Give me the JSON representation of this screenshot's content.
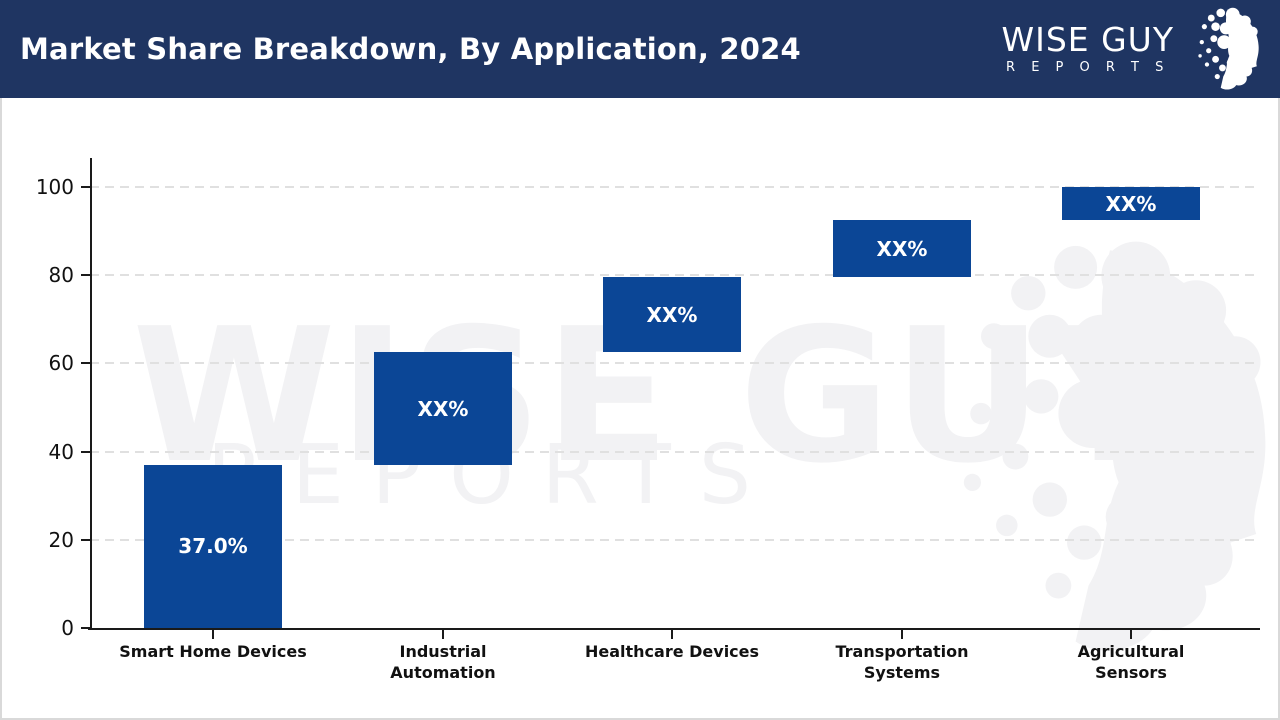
{
  "header": {
    "title": "Market Share Breakdown, By Application, 2024",
    "bg_color": "#1f3562",
    "logo": {
      "line1": "WISE GUY",
      "line2": "R E P O R T S",
      "head_icon": "dotted-face-profile-icon"
    }
  },
  "watermark": {
    "line1": "WISE GUY",
    "line2": "REPORTS",
    "face_icon": "dotted-face-profile-watermark"
  },
  "chart_data": {
    "type": "bar",
    "subtype": "waterfall",
    "title": "Market Share Breakdown, By Application, 2024",
    "categories": [
      "Smart Home Devices",
      "Industrial Automation",
      "Healthcare Devices",
      "Transportation Systems",
      "Agricultural Sensors"
    ],
    "segments": [
      {
        "category": "Smart Home Devices",
        "category_lines": [
          "Smart Home Devices"
        ],
        "start": 0,
        "end": 37,
        "label": "37.0%"
      },
      {
        "category": "Industrial Automation",
        "category_lines": [
          "Industrial",
          "Automation"
        ],
        "start": 37,
        "end": 62.5,
        "label": "XX%"
      },
      {
        "category": "Healthcare Devices",
        "category_lines": [
          "Healthcare Devices"
        ],
        "start": 62.5,
        "end": 79.5,
        "label": "XX%"
      },
      {
        "category": "Transportation Systems",
        "category_lines": [
          "Transportation",
          "Systems"
        ],
        "start": 79.5,
        "end": 92.5,
        "label": "XX%"
      },
      {
        "category": "Agricultural Sensors",
        "category_lines": [
          "Agricultural",
          "Sensors"
        ],
        "start": 92.5,
        "end": 100,
        "label": "XX%"
      }
    ],
    "yticks": [
      0,
      20,
      40,
      60,
      80,
      100
    ],
    "ylim": [
      0,
      105
    ],
    "xlabel": "",
    "ylabel": "",
    "legend": "none",
    "grid": "dashed-horizontal",
    "bar_color": "#0b4696",
    "bar_label_color": "#ffffff",
    "axis_color": "#1a1a1a",
    "grid_color": "#e0e0e0"
  }
}
